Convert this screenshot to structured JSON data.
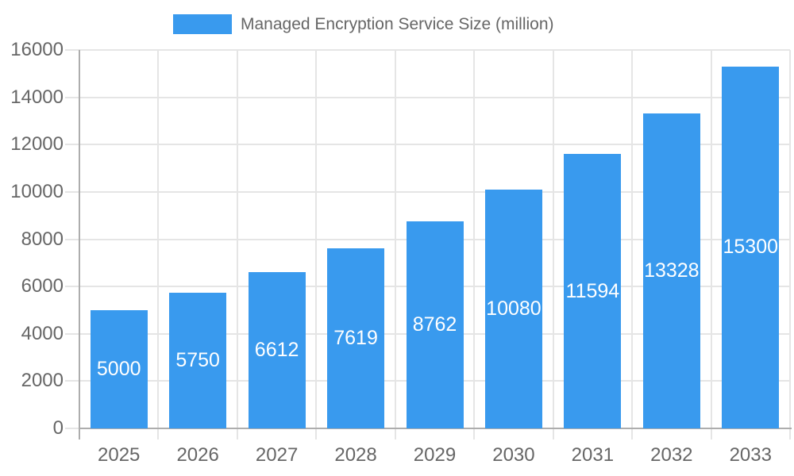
{
  "chart_data": {
    "type": "bar",
    "legend_label": "Managed Encryption Service Size (million)",
    "categories": [
      "2025",
      "2026",
      "2027",
      "2028",
      "2029",
      "2030",
      "2031",
      "2032",
      "2033"
    ],
    "values": [
      5000,
      5750,
      6612,
      7619,
      8762,
      10080,
      11594,
      13328,
      15300
    ],
    "series": [
      {
        "name": "Managed Encryption Service Size (million)",
        "values": [
          5000,
          5750,
          6612,
          7619,
          8762,
          10080,
          11594,
          13328,
          15300
        ]
      }
    ],
    "title": "",
    "xlabel": "",
    "ylabel": "",
    "ylim": [
      0,
      16000
    ],
    "ytick_interval": 2000,
    "yticks": [
      0,
      2000,
      4000,
      6000,
      8000,
      10000,
      12000,
      14000,
      16000
    ],
    "grid": true,
    "legend_position": "top",
    "value_labels": "inside-center",
    "colors": {
      "bar": "#399aee",
      "bar_value_label": "#ffffff",
      "grid": "#e5e5e5",
      "axis": "#adadad",
      "tick_text": "#666666",
      "legend_text": "#666666",
      "background": "#ffffff"
    }
  }
}
